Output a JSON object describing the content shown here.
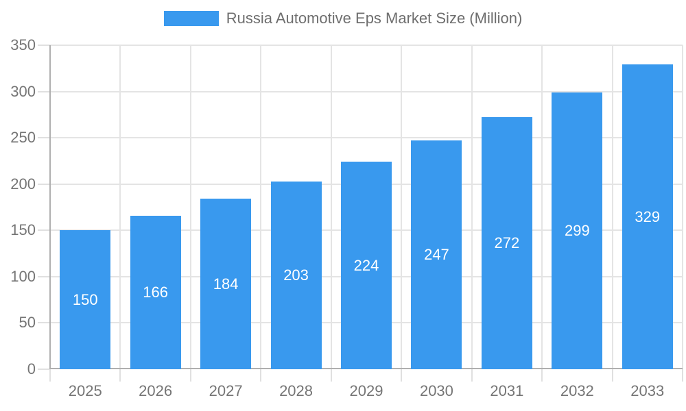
{
  "chart_data": {
    "type": "bar",
    "title": "Russia Automotive Eps Market Size (Million)",
    "legend_entries": [
      "Russia Automotive Eps Market Size (Million)"
    ],
    "legend_position": "top-center",
    "categories": [
      "2025",
      "2026",
      "2027",
      "2028",
      "2029",
      "2030",
      "2031",
      "2032",
      "2033"
    ],
    "values": [
      150,
      166,
      184,
      203,
      224,
      247,
      272,
      299,
      329
    ],
    "xlabel": "",
    "ylabel": "",
    "ylim": [
      0,
      350
    ],
    "yticks": [
      0,
      50,
      100,
      150,
      200,
      250,
      300,
      350
    ],
    "grid": true,
    "value_label_placement": "inside-center"
  },
  "colors": {
    "bar": "#3999EE",
    "grid_line": "#E4E4E4",
    "tick_line": "#E0E0E0",
    "axis_line": "#AFAFAF",
    "axis_text": "#757575",
    "legend_text": "#6E6E6E",
    "value_label_text": "#FFFFFF",
    "background": "#FFFFFF"
  }
}
